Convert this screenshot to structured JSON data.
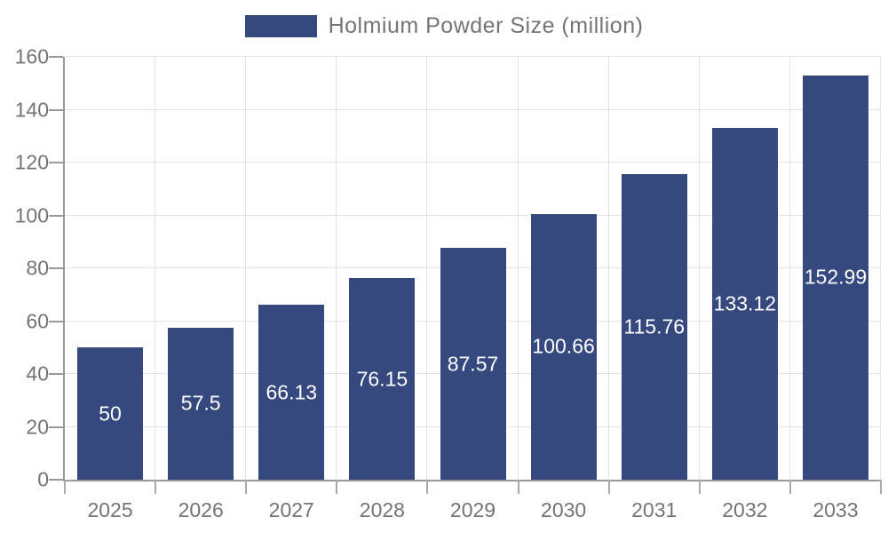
{
  "legend": {
    "label": "Holmium Powder Size (million)"
  },
  "colors": {
    "bar": "#35497f",
    "axis": "#999999",
    "grid": "#e3e3e8",
    "tick_text": "#747474",
    "legend_text": "#757575",
    "bar_value_text": "#ffffff"
  },
  "chart_data": {
    "type": "bar",
    "title": "Holmium Powder Size (million)",
    "categories": [
      "2025",
      "2026",
      "2027",
      "2028",
      "2029",
      "2030",
      "2031",
      "2032",
      "2033"
    ],
    "values": [
      50,
      57.5,
      66.13,
      76.15,
      87.57,
      100.66,
      115.76,
      133.12,
      152.99
    ],
    "value_labels": [
      "50",
      "57.5",
      "66.13",
      "76.15",
      "87.57",
      "100.66",
      "115.76",
      "133.12",
      "152.99"
    ],
    "xlabel": "",
    "ylabel": "",
    "ylim": [
      0,
      160
    ],
    "yticks": [
      0,
      20,
      40,
      60,
      80,
      100,
      120,
      140,
      160
    ],
    "grid": true,
    "legend_position": "top-center",
    "legend_entries": [
      "Holmium Powder Size (million)"
    ]
  }
}
